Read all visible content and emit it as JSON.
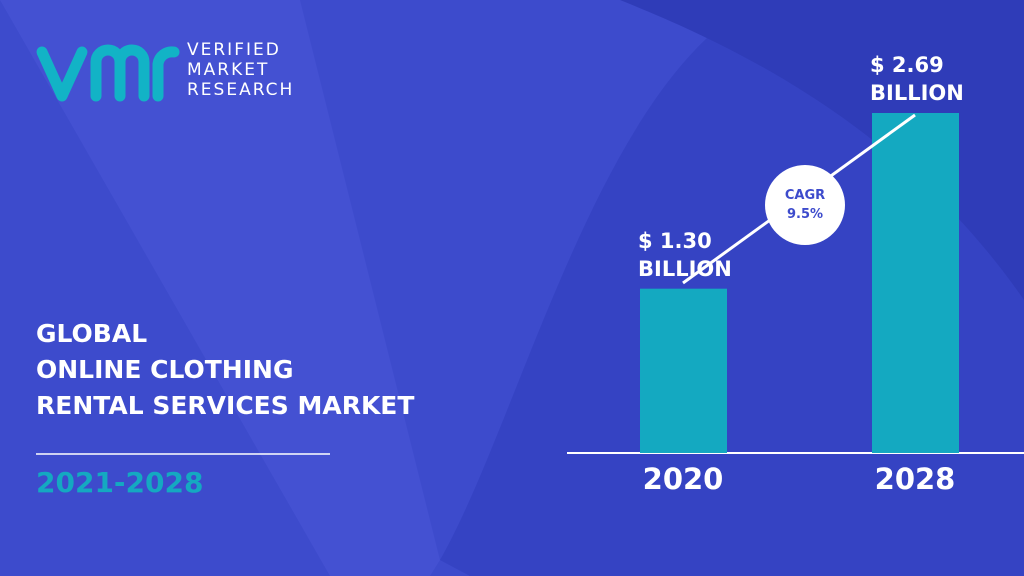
{
  "logo": {
    "text": "VERIFIED\nMARKET\nRESEARCH"
  },
  "chart_data": {
    "type": "bar",
    "title": "GLOBAL\nONLINE CLOTHING\nRENTAL SERVICES MARKET",
    "subtitle": "2021-2028",
    "categories": [
      "2020",
      "2028"
    ],
    "values": [
      1.3,
      2.69
    ],
    "value_labels": [
      "$ 1.30\nBILLION",
      "$ 2.69\nBILLION"
    ],
    "color": "#14a9c1",
    "annotation": "CAGR\n9.5%"
  }
}
